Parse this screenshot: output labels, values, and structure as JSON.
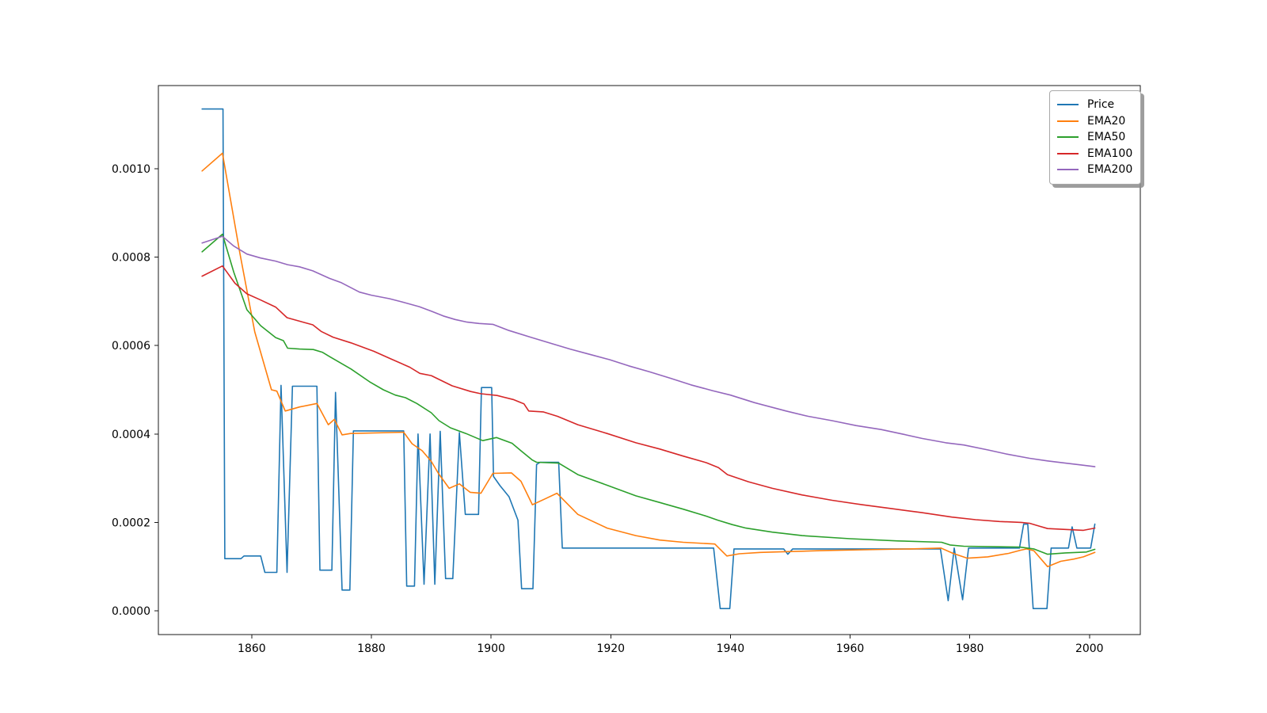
{
  "chart_data": {
    "type": "line",
    "title": "",
    "xlabel": "",
    "ylabel": "",
    "grid": false,
    "legend_position": "upper-right",
    "xlim": [
      1844.4,
      2008.5
    ],
    "ylim": [
      -5.376e-05,
      0.0011881
    ],
    "x_ticks": {
      "values": [
        1860,
        1880,
        1900,
        1920,
        1940,
        1960,
        1980,
        2000
      ],
      "labels": [
        "1860",
        "1880",
        "1900",
        "1920",
        "1940",
        "1960",
        "1980",
        "2000"
      ]
    },
    "y_ticks": {
      "values": [
        0.0,
        0.0002,
        0.0004,
        0.0006,
        0.0008,
        0.001
      ],
      "labels": [
        "0.0000",
        "0.0002",
        "0.0004",
        "0.0006",
        "0.0008",
        "0.0010"
      ]
    },
    "series": [
      {
        "name": "Price",
        "color": "#1f77b4",
        "points": [
          [
            1851.7,
            0.001135
          ],
          [
            1855.2,
            0.001135
          ],
          [
            1855.5,
            0.000118
          ],
          [
            1858.2,
            0.000118
          ],
          [
            1858.7,
            0.000124
          ],
          [
            1861.5,
            0.000124
          ],
          [
            1862.2,
            8.7e-05
          ],
          [
            1864.2,
            8.7e-05
          ],
          [
            1864.9,
            0.00051
          ],
          [
            1865.9,
            8.7e-05
          ],
          [
            1866.8,
            0.000508
          ],
          [
            1870.9,
            0.000508
          ],
          [
            1871.4,
            9.2e-05
          ],
          [
            1873.4,
            9.2e-05
          ],
          [
            1874.0,
            0.000494
          ],
          [
            1875.1,
            4.7e-05
          ],
          [
            1876.4,
            4.7e-05
          ],
          [
            1877.0,
            0.000407
          ],
          [
            1885.4,
            0.000407
          ],
          [
            1885.9,
            5.6e-05
          ],
          [
            1887.2,
            5.6e-05
          ],
          [
            1887.8,
            0.0004
          ],
          [
            1888.8,
            6e-05
          ],
          [
            1889.8,
            0.0004
          ],
          [
            1890.6,
            6e-05
          ],
          [
            1891.5,
            0.000406
          ],
          [
            1892.4,
            7.3e-05
          ],
          [
            1893.6,
            7.3e-05
          ],
          [
            1894.7,
            0.000403
          ],
          [
            1895.7,
            0.000218
          ],
          [
            1897.9,
            0.000218
          ],
          [
            1898.4,
            0.000505
          ],
          [
            1900.1,
            0.000505
          ],
          [
            1900.4,
            0.000304
          ],
          [
            1901.5,
            0.000283
          ],
          [
            1903.0,
            0.000258
          ],
          [
            1904.5,
            0.000205
          ],
          [
            1905.1,
            5e-05
          ],
          [
            1907.0,
            5e-05
          ],
          [
            1907.6,
            0.000331
          ],
          [
            1908.2,
            0.000336
          ],
          [
            1911.3,
            0.000336
          ],
          [
            1911.9,
            0.000142
          ],
          [
            1937.2,
            0.000142
          ],
          [
            1938.3,
            5e-06
          ],
          [
            1939.9,
            5e-06
          ],
          [
            1940.6,
            0.00014
          ],
          [
            1948.9,
            0.00014
          ],
          [
            1949.6,
            0.000128
          ],
          [
            1950.4,
            0.00014
          ],
          [
            1975.1,
            0.00014
          ],
          [
            1976.4,
            2.3e-05
          ],
          [
            1977.4,
            0.000142
          ],
          [
            1978.8,
            2.5e-05
          ],
          [
            1979.8,
            0.000142
          ],
          [
            1988.3,
            0.000142
          ],
          [
            1989.0,
            0.000196
          ],
          [
            1989.7,
            0.000196
          ],
          [
            1990.6,
            5e-06
          ],
          [
            1992.9,
            5e-06
          ],
          [
            1993.6,
            0.000142
          ],
          [
            1996.5,
            0.000142
          ],
          [
            1997.1,
            0.00019
          ],
          [
            1997.9,
            0.000142
          ],
          [
            2000.2,
            0.000142
          ],
          [
            2000.9,
            0.000196
          ]
        ]
      },
      {
        "name": "EMA20",
        "color": "#ff7f0e",
        "points": [
          [
            1851.7,
            0.000995
          ],
          [
            1855.1,
            0.001035
          ],
          [
            1858.0,
            0.00081
          ],
          [
            1860.5,
            0.000631
          ],
          [
            1863.3,
            0.0005
          ],
          [
            1864.2,
            0.000497
          ],
          [
            1865.6,
            0.000452
          ],
          [
            1868.0,
            0.000461
          ],
          [
            1870.9,
            0.000469
          ],
          [
            1872.8,
            0.000421
          ],
          [
            1873.8,
            0.000433
          ],
          [
            1875.1,
            0.000398
          ],
          [
            1876.5,
            0.000401
          ],
          [
            1885.4,
            0.000404
          ],
          [
            1886.8,
            0.000378
          ],
          [
            1888.5,
            0.000362
          ],
          [
            1890.0,
            0.000338
          ],
          [
            1891.2,
            0.000311
          ],
          [
            1893.0,
            0.000277
          ],
          [
            1894.7,
            0.000287
          ],
          [
            1896.5,
            0.000268
          ],
          [
            1898.3,
            0.000266
          ],
          [
            1900.3,
            0.000311
          ],
          [
            1903.4,
            0.000312
          ],
          [
            1905.0,
            0.000293
          ],
          [
            1906.9,
            0.00024
          ],
          [
            1909.0,
            0.000253
          ],
          [
            1911.0,
            0.000266
          ],
          [
            1914.5,
            0.000218
          ],
          [
            1919.4,
            0.000187
          ],
          [
            1924.2,
            0.00017
          ],
          [
            1928.2,
            0.00016
          ],
          [
            1932.1,
            0.000155
          ],
          [
            1937.4,
            0.000151
          ],
          [
            1939.4,
            0.000124
          ],
          [
            1941.5,
            0.000129
          ],
          [
            1945.0,
            0.000132
          ],
          [
            1950.0,
            0.000134
          ],
          [
            1955.0,
            0.000136
          ],
          [
            1962.0,
            0.000138
          ],
          [
            1970.0,
            0.00014
          ],
          [
            1975.2,
            0.000142
          ],
          [
            1977.2,
            0.00013
          ],
          [
            1979.6,
            0.000119
          ],
          [
            1983.0,
            0.000122
          ],
          [
            1986.5,
            0.00013
          ],
          [
            1988.5,
            0.000137
          ],
          [
            1989.5,
            0.00014
          ],
          [
            1990.7,
            0.000136
          ],
          [
            1993.0,
            0.0001
          ],
          [
            1995.2,
            0.000112
          ],
          [
            1997.4,
            0.000117
          ],
          [
            1999.0,
            0.000122
          ],
          [
            2000.9,
            0.000132
          ]
        ]
      },
      {
        "name": "EMA50",
        "color": "#2ca02c",
        "points": [
          [
            1851.7,
            0.000812
          ],
          [
            1855.1,
            0.000852
          ],
          [
            1857.0,
            0.000766
          ],
          [
            1859.2,
            0.000681
          ],
          [
            1861.5,
            0.000645
          ],
          [
            1864.0,
            0.000618
          ],
          [
            1865.3,
            0.000611
          ],
          [
            1866.0,
            0.000594
          ],
          [
            1868.0,
            0.000592
          ],
          [
            1870.3,
            0.000591
          ],
          [
            1871.8,
            0.000585
          ],
          [
            1873.0,
            0.000575
          ],
          [
            1876.6,
            0.000547
          ],
          [
            1879.7,
            0.000518
          ],
          [
            1882.0,
            0.0005
          ],
          [
            1884.0,
            0.000488
          ],
          [
            1885.7,
            0.000482
          ],
          [
            1887.6,
            0.000469
          ],
          [
            1890.0,
            0.000448
          ],
          [
            1891.3,
            0.00043
          ],
          [
            1893.2,
            0.000414
          ],
          [
            1895.8,
            0.000401
          ],
          [
            1898.6,
            0.000385
          ],
          [
            1900.9,
            0.000392
          ],
          [
            1903.5,
            0.000379
          ],
          [
            1905.0,
            0.000362
          ],
          [
            1906.9,
            0.000341
          ],
          [
            1907.6,
            0.000336
          ],
          [
            1911.3,
            0.000334
          ],
          [
            1914.5,
            0.000308
          ],
          [
            1919.4,
            0.000284
          ],
          [
            1924.2,
            0.00026
          ],
          [
            1928.2,
            0.000245
          ],
          [
            1932.1,
            0.00023
          ],
          [
            1936.0,
            0.000214
          ],
          [
            1937.9,
            0.000205
          ],
          [
            1940.3,
            0.000195
          ],
          [
            1942.6,
            0.000187
          ],
          [
            1947.0,
            0.000178
          ],
          [
            1952.0,
            0.00017
          ],
          [
            1960.0,
            0.000163
          ],
          [
            1968.0,
            0.000158
          ],
          [
            1975.3,
            0.000155
          ],
          [
            1976.7,
            0.000149
          ],
          [
            1979.0,
            0.000146
          ],
          [
            1984.0,
            0.000145
          ],
          [
            1988.4,
            0.000144
          ],
          [
            1990.7,
            0.00014
          ],
          [
            1993.0,
            0.000128
          ],
          [
            1996.0,
            0.000131
          ],
          [
            1999.5,
            0.000133
          ],
          [
            2000.9,
            0.000139
          ]
        ]
      },
      {
        "name": "EMA100",
        "color": "#d62728",
        "points": [
          [
            1851.7,
            0.000757
          ],
          [
            1855.1,
            0.00078
          ],
          [
            1857.2,
            0.000741
          ],
          [
            1859.2,
            0.000717
          ],
          [
            1861.5,
            0.000703
          ],
          [
            1864.0,
            0.000687
          ],
          [
            1865.9,
            0.000663
          ],
          [
            1867.5,
            0.000657
          ],
          [
            1870.2,
            0.000647
          ],
          [
            1871.6,
            0.000632
          ],
          [
            1873.6,
            0.000619
          ],
          [
            1876.6,
            0.000606
          ],
          [
            1880.4,
            0.000587
          ],
          [
            1883.4,
            0.000569
          ],
          [
            1886.4,
            0.000551
          ],
          [
            1888.1,
            0.000537
          ],
          [
            1890.0,
            0.000532
          ],
          [
            1893.5,
            0.000509
          ],
          [
            1896.6,
            0.000496
          ],
          [
            1898.3,
            0.000491
          ],
          [
            1901.0,
            0.000487
          ],
          [
            1903.7,
            0.000478
          ],
          [
            1905.5,
            0.000468
          ],
          [
            1906.3,
            0.000452
          ],
          [
            1908.7,
            0.00045
          ],
          [
            1911.1,
            0.00044
          ],
          [
            1914.5,
            0.000421
          ],
          [
            1919.4,
            0.000401
          ],
          [
            1924.2,
            0.00038
          ],
          [
            1928.2,
            0.000366
          ],
          [
            1932.1,
            0.00035
          ],
          [
            1936.0,
            0.000335
          ],
          [
            1938.0,
            0.000324
          ],
          [
            1939.5,
            0.000308
          ],
          [
            1943.0,
            0.000292
          ],
          [
            1947.0,
            0.000277
          ],
          [
            1952.0,
            0.000262
          ],
          [
            1957.0,
            0.00025
          ],
          [
            1962.0,
            0.00024
          ],
          [
            1967.0,
            0.000231
          ],
          [
            1972.0,
            0.000222
          ],
          [
            1977.0,
            0.000212
          ],
          [
            1981.0,
            0.000206
          ],
          [
            1985.0,
            0.000202
          ],
          [
            1988.6,
            0.0002
          ],
          [
            1990.0,
            0.000198
          ],
          [
            1991.5,
            0.000192
          ],
          [
            1993.0,
            0.000186
          ],
          [
            1996.0,
            0.000184
          ],
          [
            1999.0,
            0.000182
          ],
          [
            2000.9,
            0.000187
          ]
        ]
      },
      {
        "name": "EMA200",
        "color": "#9467bd",
        "points": [
          [
            1851.7,
            0.000832
          ],
          [
            1855.1,
            0.000847
          ],
          [
            1857.0,
            0.000825
          ],
          [
            1859.2,
            0.000807
          ],
          [
            1861.5,
            0.000798
          ],
          [
            1864.0,
            0.000791
          ],
          [
            1866.0,
            0.000783
          ],
          [
            1868.0,
            0.000778
          ],
          [
            1870.2,
            0.000769
          ],
          [
            1873.0,
            0.000752
          ],
          [
            1875.0,
            0.000742
          ],
          [
            1878.0,
            0.000721
          ],
          [
            1880.0,
            0.000714
          ],
          [
            1883.0,
            0.000706
          ],
          [
            1885.0,
            0.000699
          ],
          [
            1888.0,
            0.000688
          ],
          [
            1890.0,
            0.000678
          ],
          [
            1892.0,
            0.000667
          ],
          [
            1894.0,
            0.000659
          ],
          [
            1896.0,
            0.000653
          ],
          [
            1898.0,
            0.00065
          ],
          [
            1900.3,
            0.000648
          ],
          [
            1903.0,
            0.000634
          ],
          [
            1906.6,
            0.000619
          ],
          [
            1910.0,
            0.000605
          ],
          [
            1913.2,
            0.000592
          ],
          [
            1916.5,
            0.00058
          ],
          [
            1919.8,
            0.000568
          ],
          [
            1923.0,
            0.000554
          ],
          [
            1926.4,
            0.000541
          ],
          [
            1930.0,
            0.000526
          ],
          [
            1933.4,
            0.000511
          ],
          [
            1937.0,
            0.000498
          ],
          [
            1940.0,
            0.000488
          ],
          [
            1944.0,
            0.000471
          ],
          [
            1949.3,
            0.000452
          ],
          [
            1953.0,
            0.00044
          ],
          [
            1957.0,
            0.00043
          ],
          [
            1961.0,
            0.000419
          ],
          [
            1965.2,
            0.00041
          ],
          [
            1969.0,
            0.000399
          ],
          [
            1972.0,
            0.00039
          ],
          [
            1976.0,
            0.00038
          ],
          [
            1979.0,
            0.000375
          ],
          [
            1983.0,
            0.000364
          ],
          [
            1986.0,
            0.000355
          ],
          [
            1990.0,
            0.000345
          ],
          [
            1993.0,
            0.000339
          ],
          [
            1996.0,
            0.000334
          ],
          [
            1998.5,
            0.00033
          ],
          [
            2000.9,
            0.000326
          ]
        ]
      }
    ]
  },
  "layout_colors": {
    "spine": "#1a1a1a",
    "background": "#ffffff"
  }
}
